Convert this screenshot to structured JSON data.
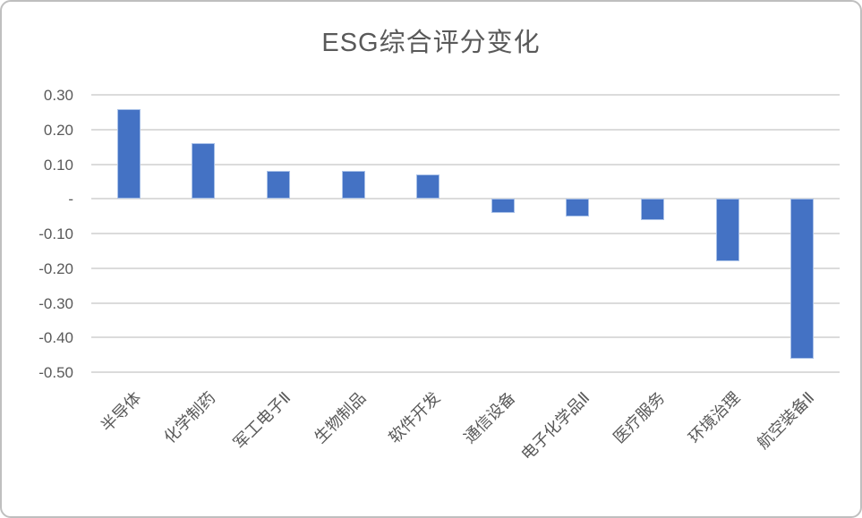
{
  "chart_data": {
    "type": "bar",
    "title": "ESG综合评分变化",
    "categories": [
      "半导体",
      "化学制药",
      "军工电子Ⅱ",
      "生物制品",
      "软件开发",
      "通信设备",
      "电子化学品Ⅱ",
      "医疗服务",
      "环境治理",
      "航空装备Ⅱ"
    ],
    "values": [
      0.26,
      0.16,
      0.08,
      0.08,
      0.07,
      -0.04,
      -0.05,
      -0.06,
      -0.18,
      -0.46
    ],
    "xlabel": "",
    "ylabel": "",
    "ylim": [
      -0.5,
      0.3
    ],
    "grid": true,
    "legend": false,
    "yticks": [
      {
        "label": "0.30",
        "value": 0.3
      },
      {
        "label": "0.20",
        "value": 0.2
      },
      {
        "label": "0.10",
        "value": 0.1
      },
      {
        "label": "-",
        "value": 0
      },
      {
        "label": "-0.10",
        "value": -0.1
      },
      {
        "label": "-0.20",
        "value": -0.2
      },
      {
        "label": "-0.30",
        "value": -0.3
      },
      {
        "label": "-0.40",
        "value": -0.4
      },
      {
        "label": "-0.50",
        "value": -0.5
      }
    ],
    "colors": {
      "bar": "#4472C4",
      "bar_border": "#A9C1E8",
      "gridline": "#DBDBDB",
      "axis_text": "#595959",
      "title_text": "#595959",
      "frame_border": "#BFBFBF",
      "background": "#FFFFFF"
    }
  }
}
